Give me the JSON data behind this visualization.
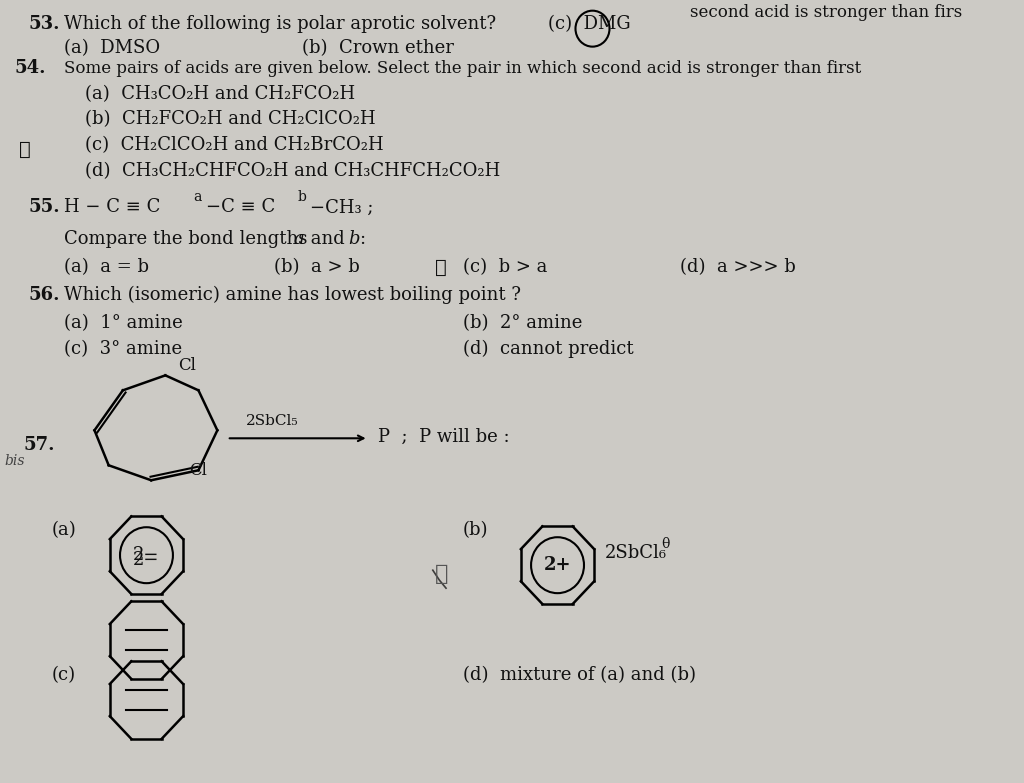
{
  "bg_color": "#cccac5",
  "text_color": "#111111",
  "q53_num": "53.",
  "q53_text": "Which of the following is polar aprotic solvent?",
  "q53_a": "(a)  DMSO",
  "q53_b": "(b)  Crown ether",
  "q53_c": "(c)  DMG",
  "q54_num": "54.",
  "q54_text": "Some pairs of acids are given below. Select the pair in which second acid is stronger than first",
  "q54_a": "(a)  CH₃CO₂H and CH₂FCO₂H",
  "q54_b": "(b)  CH₂FCO₂H and CH₂ClCO₂H",
  "q54_c": "(c)  CH₂ClCO₂H and CH₂BrCO₂H",
  "q54_d": "(d)  CH₃CH₂CHFCO₂H and CH₃CHFCH₂CO₂H",
  "q55_num": "55.",
  "q55_text1": "H − C ≡ C",
  "q55_sup_a": "a",
  "q55_text2": "C ≡ C",
  "q55_sup_b": "b",
  "q55_text3": "CH₃ ;",
  "q55_sub": "Compare the bond lengths a and b:",
  "q55_a": "(a)  a = b",
  "q55_b": "(b)  a > b",
  "q55_c": "(c)  b > a",
  "q55_d": "(d)  a >>> b",
  "q56_num": "56.",
  "q56_text": "Which (isomeric) amine has lowest boiling point ?",
  "q56_a": "(a)  1° amine",
  "q56_b": "(b)  2° amine",
  "q56_c": "(c)  3° amine",
  "q56_d": "(d)  cannot predict",
  "q57_num": "57.",
  "q57_arrow_text": "2SbCl₅",
  "q57_P_text": "P ;  P will be :",
  "q57_a_label": "(a)",
  "q57_b_label": "(b)",
  "q57_b_text": "2SbCl₆",
  "q57_c_label": "(c)",
  "q57_d_text": "(d)  mixture of (a) and (b)",
  "right_header": "second acid is stronger than firs"
}
